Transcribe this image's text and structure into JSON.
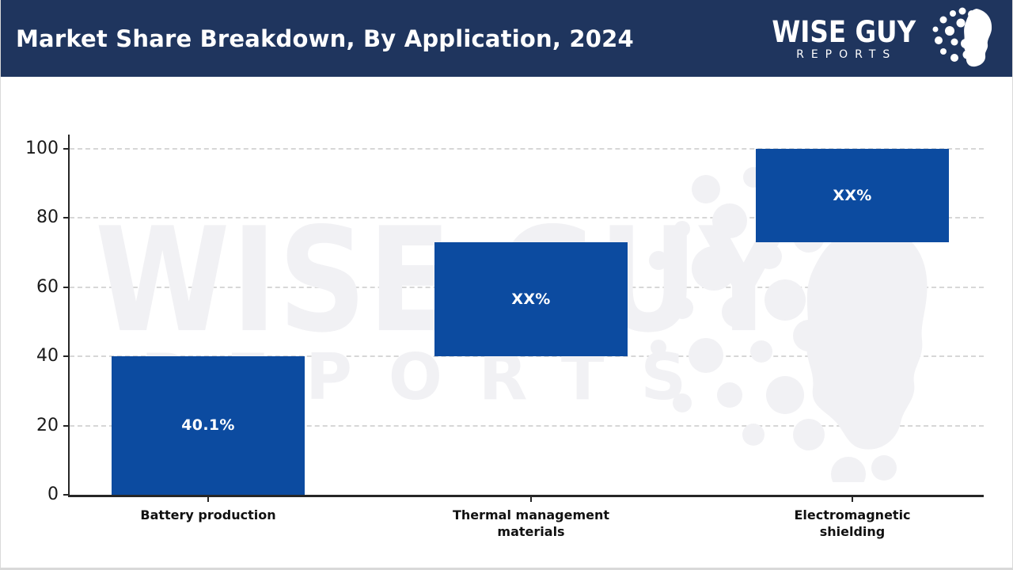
{
  "header": {
    "title": "Market Share Breakdown, By Application, 2024",
    "bg_color": "#1f355e",
    "logo": {
      "brand_line1": "WISE GUY",
      "brand_line2": "REPORTS"
    }
  },
  "watermark": {
    "line1": "WISE GUY",
    "line2": "REPORTS"
  },
  "chart_data": {
    "type": "bar",
    "variant": "floating segment / waterfall breakdown",
    "title": "Market Share Breakdown, By Application, 2024",
    "categories": [
      "Battery production",
      "Thermal management materials",
      "Electromagnetic shielding"
    ],
    "category_label_lines": [
      [
        "Battery production"
      ],
      [
        "Thermal management",
        "materials"
      ],
      [
        "Electromagnetic",
        "shielding"
      ]
    ],
    "segments": [
      {
        "category": "Battery production",
        "start": 0,
        "end": 40.1,
        "label": "40.1%"
      },
      {
        "category": "Thermal management materials",
        "start": 40.1,
        "end": 73,
        "label": "XX%"
      },
      {
        "category": "Electromagnetic shielding",
        "start": 73,
        "end": 100,
        "label": "XX%"
      }
    ],
    "xlabel": "",
    "ylabel": "",
    "yticks": [
      0,
      20,
      40,
      60,
      80,
      100
    ],
    "ylim": [
      0,
      104
    ],
    "legend": "none",
    "grid": {
      "horizontal": true,
      "style": "dashed",
      "color": "#d7d7d7"
    },
    "colors": {
      "bar": "#0c4ba0",
      "bar_label": "#ffffff",
      "axis": "#262626",
      "tick_label": "#1a1a1a",
      "watermark": "#f1f1f4"
    }
  }
}
